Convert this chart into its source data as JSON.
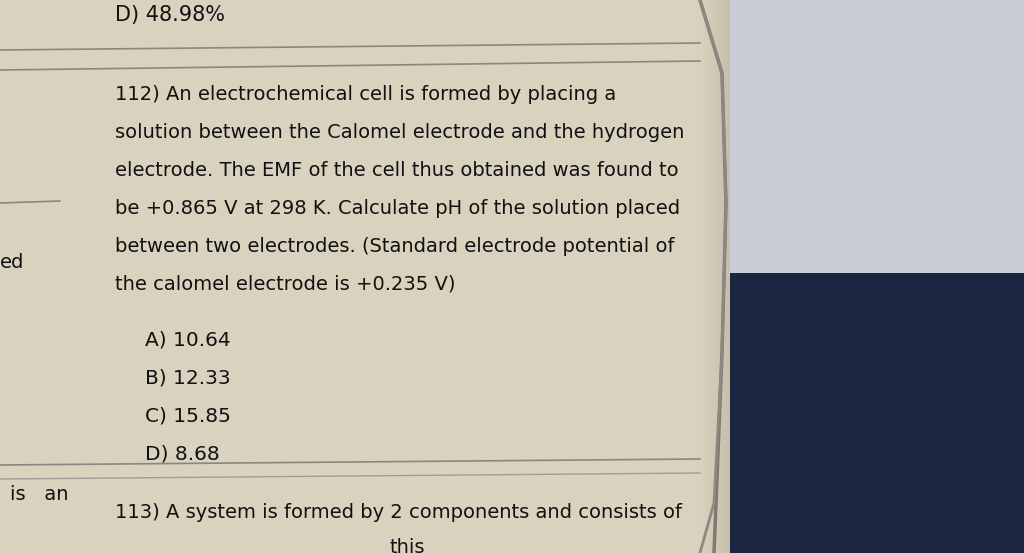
{
  "bg_color": "#d0cabb",
  "paper_color": "#d8d2be",
  "paper_color2": "#ccc6b2",
  "right_light_color": "#c8cdd8",
  "right_dark_color": "#1a2540",
  "prev_answer": "D) 48.98%",
  "question_number": "112)",
  "question_text_lines": [
    "An electrochemical cell is formed by placing a",
    "solution between the Calomel electrode and the hydrogen",
    "electrode. The EMF of the cell thus obtained was found to",
    "be +0.865 V at 298 K. Calculate pH of the solution placed",
    "between two electrodes. (Standard electrode potential of",
    "the calomel electrode is +0.235 V)"
  ],
  "options": [
    "A) 10.64",
    "B) 12.33",
    "C) 15.85",
    "D) 8.68"
  ],
  "bottom_text": "is   an",
  "next_question_start": "113) A system is formed by 2 components and consists of",
  "next_question_end": "this",
  "left_partial_text": "ed",
  "font_size_question": 14,
  "font_size_options": 14.5,
  "text_color": "#111111",
  "line_color": "#888880"
}
